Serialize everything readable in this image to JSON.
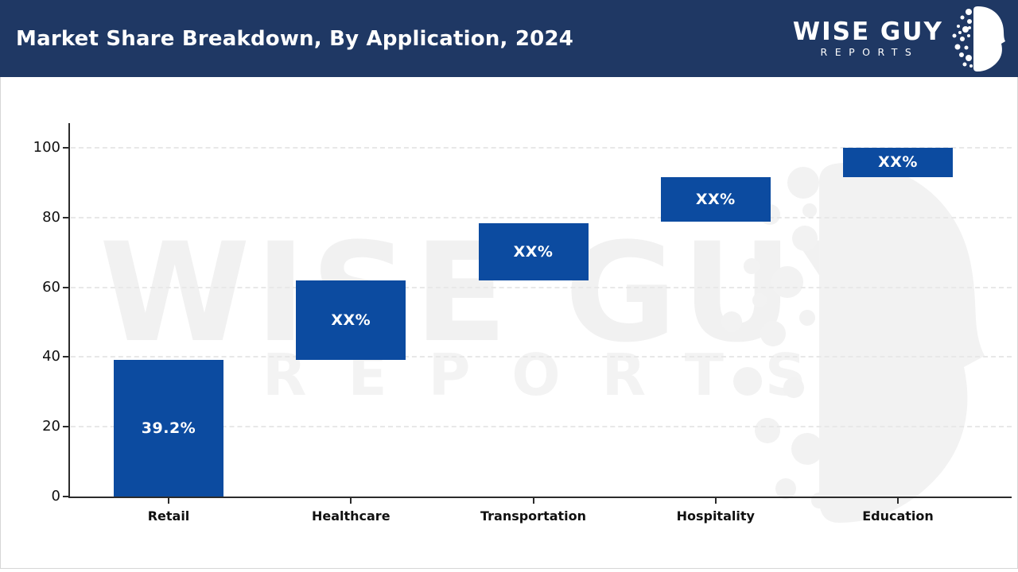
{
  "header": {
    "title": "Market Share Breakdown, By Application, 2024",
    "logo": {
      "line1": "WISE GUY",
      "line2": "REPORTS"
    }
  },
  "watermark": {
    "line1": "WISE GUY",
    "line2": "REPORTS"
  },
  "chart_data": {
    "type": "bar",
    "subtype": "waterfall",
    "title": "Market Share Breakdown, By Application, 2024",
    "categories": [
      "Retail",
      "Healthcare",
      "Transportation",
      "Hospitality",
      "Education"
    ],
    "segments": [
      {
        "category": "Retail",
        "start": 0,
        "end": 39.2,
        "label": "39.2%"
      },
      {
        "category": "Healthcare",
        "start": 39.2,
        "end": 62,
        "label": "XX%"
      },
      {
        "category": "Transportation",
        "start": 62,
        "end": 78.4,
        "label": "XX%"
      },
      {
        "category": "Hospitality",
        "start": 78.8,
        "end": 91.5,
        "label": "XX%"
      },
      {
        "category": "Education",
        "start": 91.6,
        "end": 100,
        "label": "XX%"
      }
    ],
    "yticks": [
      0,
      20,
      40,
      60,
      80,
      100
    ],
    "ylim": [
      0,
      107
    ],
    "grid": true,
    "legend": false,
    "xlabel": "",
    "ylabel": ""
  },
  "colors": {
    "header_bg": "#1f3864",
    "bar": "#0c4ba0",
    "bar_label": "#ffffff",
    "axis": "#2b2b2b",
    "gridline": "#e8e8e8",
    "watermark": "#f1f1f1",
    "card_border": "#d6d6d6"
  }
}
